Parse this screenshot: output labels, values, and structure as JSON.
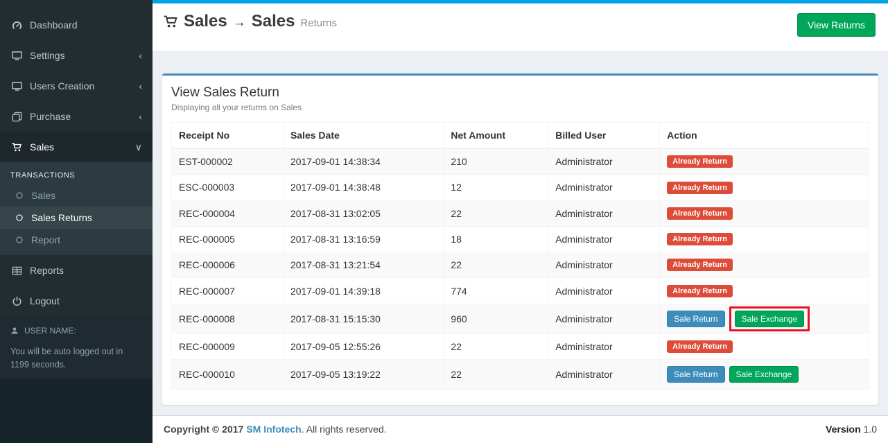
{
  "colors": {
    "top_line": "#00a2e8",
    "accent": "#3c8dbc",
    "green": "#00a65a",
    "red": "#dd4b39",
    "annotation": "#e81123",
    "sidebar_bg": "#222d32",
    "sidebar_active_bg": "#1e282c",
    "submenu_bg": "#2c3b41",
    "content_bg": "#ecf0f5"
  },
  "icons": {
    "dashboard": "gauge-icon",
    "settings": "desktop-icon",
    "users_creation": "desktop-icon",
    "purchase": "copy-icon",
    "sales": "cart-icon",
    "reports": "grid-icon",
    "logout": "power-icon",
    "user": "user-icon",
    "submenu_bullet": "circle-icon",
    "breadcrumb": "cart-icon"
  },
  "sidebar": {
    "items": [
      {
        "label": "Dashboard"
      },
      {
        "label": "Settings",
        "chevron": "‹"
      },
      {
        "label": "Users Creation",
        "chevron": "‹"
      },
      {
        "label": "Purchase",
        "chevron": "‹"
      },
      {
        "label": "Sales",
        "chevron": "∨"
      }
    ],
    "submenu_header": "TRANSACTIONS",
    "submenu": [
      {
        "label": "Sales"
      },
      {
        "label": "Sales Returns"
      },
      {
        "label": "Report"
      }
    ],
    "reports_label": "Reports",
    "logout_label": "Logout",
    "user_label": "USER NAME:",
    "logout_notice": "You will be auto logged out in 1199 seconds."
  },
  "header": {
    "title": "Sales",
    "arrow": "→",
    "subtitle_strong": "Sales",
    "subtitle_light": "Returns",
    "action_button": "View Returns"
  },
  "panel": {
    "title": "View Sales Return",
    "subtitle": "Displaying all your returns on Sales",
    "table": {
      "columns": [
        "Receipt No",
        "Sales Date",
        "Net Amount",
        "Billed User",
        "Action"
      ],
      "rows": [
        {
          "receipt": "EST-000002",
          "date": "2017-09-01 14:38:34",
          "amount": "210",
          "user": "Administrator",
          "actions": [
            {
              "label": "Already Return",
              "type": "already"
            }
          ]
        },
        {
          "receipt": "ESC-000003",
          "date": "2017-09-01 14:38:48",
          "amount": "12",
          "user": "Administrator",
          "actions": [
            {
              "label": "Already Return",
              "type": "already"
            }
          ]
        },
        {
          "receipt": "REC-000004",
          "date": "2017-08-31 13:02:05",
          "amount": "22",
          "user": "Administrator",
          "actions": [
            {
              "label": "Already Return",
              "type": "already"
            }
          ]
        },
        {
          "receipt": "REC-000005",
          "date": "2017-08-31 13:16:59",
          "amount": "18",
          "user": "Administrator",
          "actions": [
            {
              "label": "Already Return",
              "type": "already"
            }
          ]
        },
        {
          "receipt": "REC-000006",
          "date": "2017-08-31 13:21:54",
          "amount": "22",
          "user": "Administrator",
          "actions": [
            {
              "label": "Already Return",
              "type": "already"
            }
          ]
        },
        {
          "receipt": "REC-000007",
          "date": "2017-09-01 14:39:18",
          "amount": "774",
          "user": "Administrator",
          "actions": [
            {
              "label": "Already Return",
              "type": "already"
            }
          ]
        },
        {
          "receipt": "REC-000008",
          "date": "2017-08-31 15:15:30",
          "amount": "960",
          "user": "Administrator",
          "actions": [
            {
              "label": "Sale Return",
              "type": "return"
            },
            {
              "label": "Sale Exchange",
              "type": "exchange",
              "annotated": true
            }
          ]
        },
        {
          "receipt": "REC-000009",
          "date": "2017-09-05 12:55:26",
          "amount": "22",
          "user": "Administrator",
          "actions": [
            {
              "label": "Already Return",
              "type": "already"
            }
          ]
        },
        {
          "receipt": "REC-000010",
          "date": "2017-09-05 13:19:22",
          "amount": "22",
          "user": "Administrator",
          "actions": [
            {
              "label": "Sale Return",
              "type": "return"
            },
            {
              "label": "Sale Exchange",
              "type": "exchange"
            }
          ]
        }
      ]
    }
  },
  "footer": {
    "prefix": "Copyright © 2017",
    "company": "SM Infotech",
    "suffix": ". All rights reserved.",
    "version_label": "Version",
    "version_value": "1.0"
  }
}
